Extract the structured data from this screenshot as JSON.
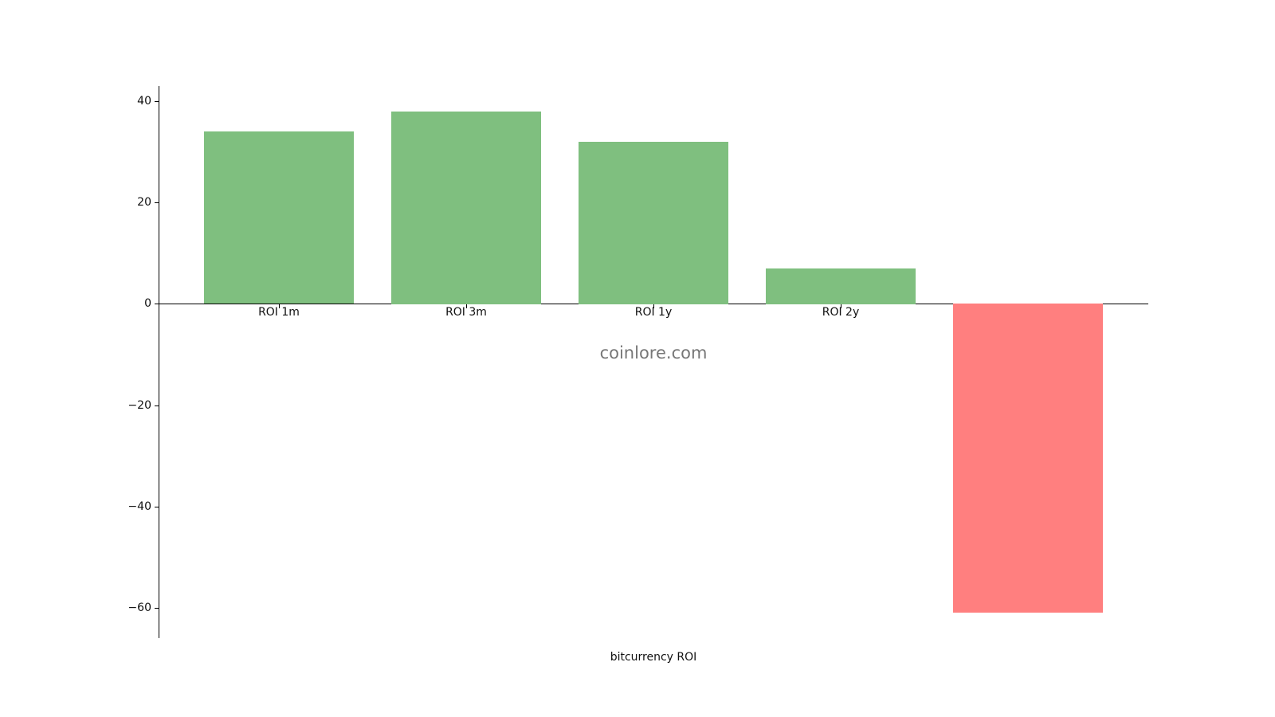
{
  "chart_data": {
    "type": "bar",
    "categories": [
      "ROI 1m",
      "ROI 3m",
      "ROI 1y",
      "ROI 2y",
      ""
    ],
    "values": [
      34,
      38,
      32,
      7,
      -61
    ],
    "title": "",
    "xlabel": "bitcurrency ROI",
    "ylabel": "",
    "yticks": [
      40,
      20,
      0,
      -20,
      -40,
      -60
    ],
    "ylim": [
      -65.95,
      42.95
    ],
    "xlim": [
      -0.64,
      4.64
    ],
    "bar_width": 0.8,
    "grid": false,
    "legend_position": "none",
    "positive_color": "#7fbf7f",
    "negative_color": "#ff7f7f",
    "axis_color": "#000000",
    "text_color": "#111111",
    "watermark": "coinlore.com",
    "watermark_color": "#777777",
    "background_color": "#ffffff"
  }
}
